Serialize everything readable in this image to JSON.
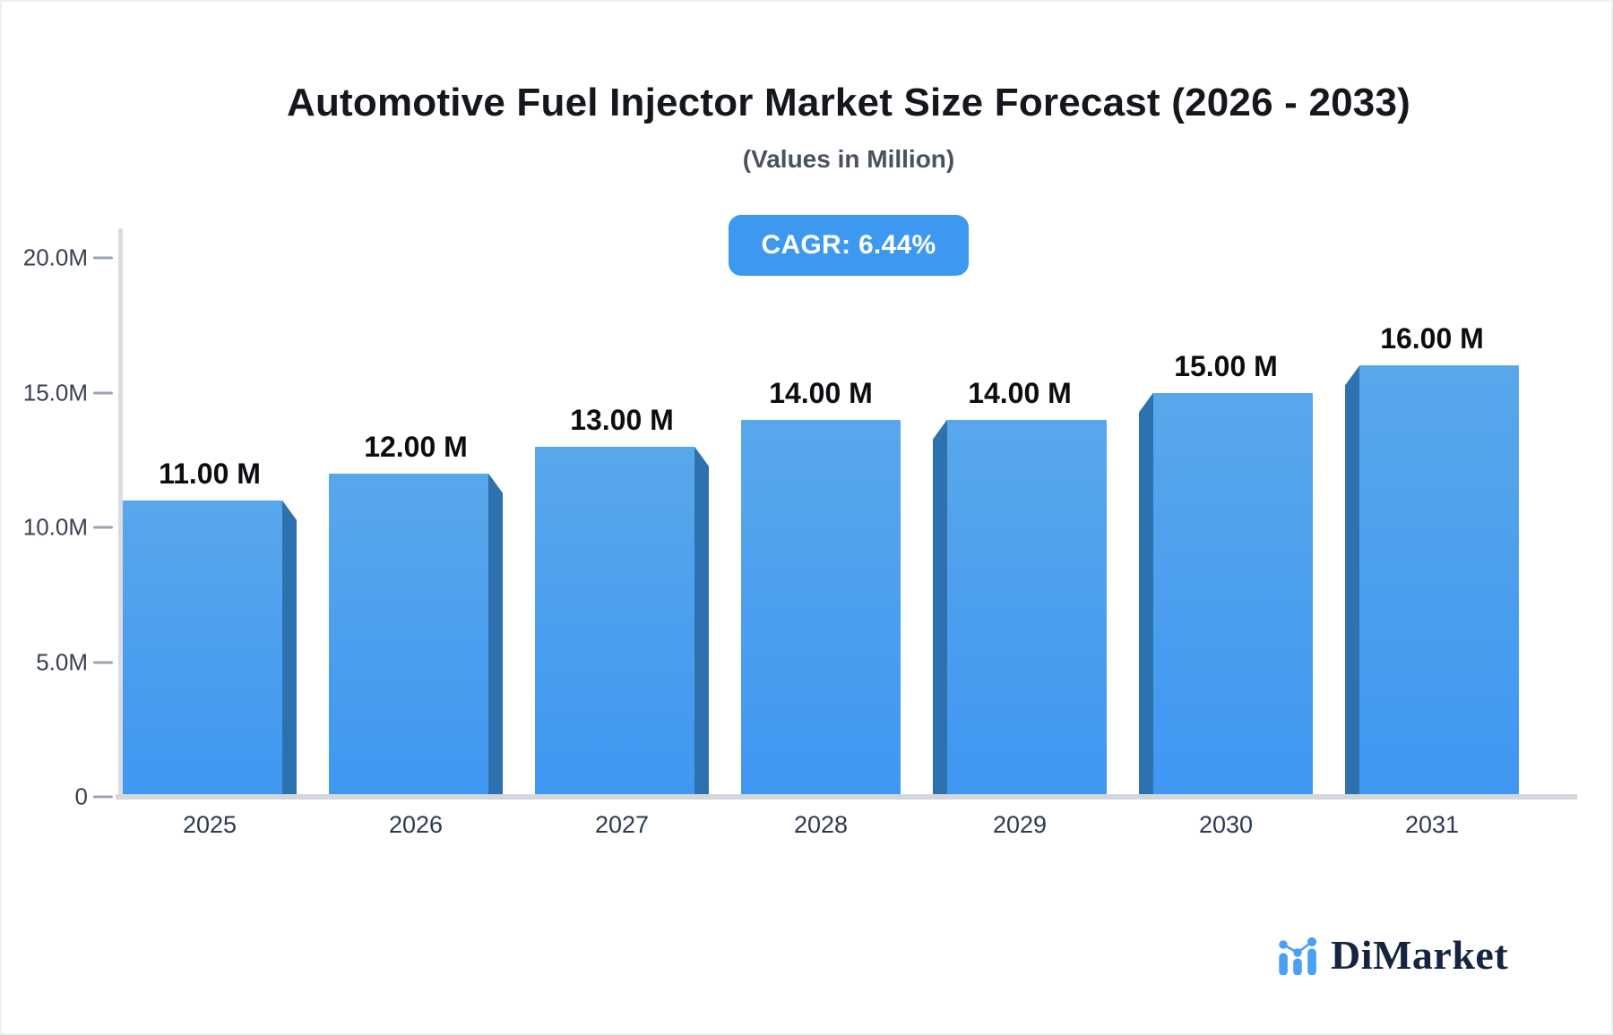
{
  "chart_data": {
    "type": "bar",
    "title": "Automotive Fuel Injector Market Size Forecast (2026 - 2033)",
    "subtitle": "(Values in Million)",
    "cagr_label": "CAGR: 6.44%",
    "categories": [
      "2025",
      "2026",
      "2027",
      "2028",
      "2029",
      "2030",
      "2031"
    ],
    "values": [
      11,
      12,
      13,
      14,
      14,
      15,
      16
    ],
    "bar_labels": [
      "11.00 M",
      "12.00 M",
      "13.00 M",
      "14.00 M",
      "14.00 M",
      "15.00 M",
      "16.00 M"
    ],
    "xlabel": "",
    "ylabel": "",
    "ylim": [
      0,
      20
    ],
    "yticks": [
      {
        "label": "20.0M",
        "value": 20
      },
      {
        "label": "15.0M",
        "value": 15
      },
      {
        "label": "10.0M",
        "value": 10
      },
      {
        "label": "5.0M",
        "value": 5
      },
      {
        "label": "0",
        "value": 0
      }
    ],
    "grid": false,
    "legend": null,
    "colors": {
      "bar_face_top": "#59a7eb",
      "bar_face_bottom": "#3f97f2",
      "bar_side": "#2d72ae",
      "badge_bg": "#3d99f0",
      "axis_line": "#d9dce1",
      "baseline": "#d3d6db",
      "tick_dash": "#9ba3b0",
      "logo_blue": "#4aa0f4",
      "logo_navy": "#152540"
    }
  },
  "branding": {
    "logo_text": "DiMarket"
  }
}
